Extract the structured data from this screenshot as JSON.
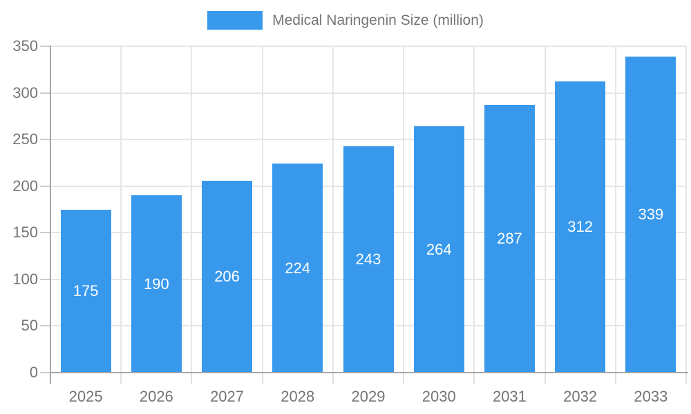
{
  "chart_data": {
    "type": "bar",
    "title": "Medical Naringenin Size (million)",
    "categories": [
      "2025",
      "2026",
      "2027",
      "2028",
      "2029",
      "2030",
      "2031",
      "2032",
      "2033"
    ],
    "series": [
      {
        "name": "Medical Naringenin Size (million)",
        "values": [
          175,
          190,
          206,
          224,
          243,
          264,
          287,
          312,
          339
        ]
      }
    ],
    "xlabel": "",
    "ylabel": "",
    "ylim": [
      0,
      350
    ],
    "yticks": [
      0,
      50,
      100,
      150,
      200,
      250,
      300,
      350
    ],
    "grid": true,
    "legend_position": "top-center",
    "value_labels": "inside-center",
    "colors": {
      "bar": "#3899ec",
      "value_label": "#ffffff",
      "grid": "#e6e6e6",
      "axis": "#a6a6a6",
      "text": "#757575",
      "background": "#ffffff"
    }
  }
}
